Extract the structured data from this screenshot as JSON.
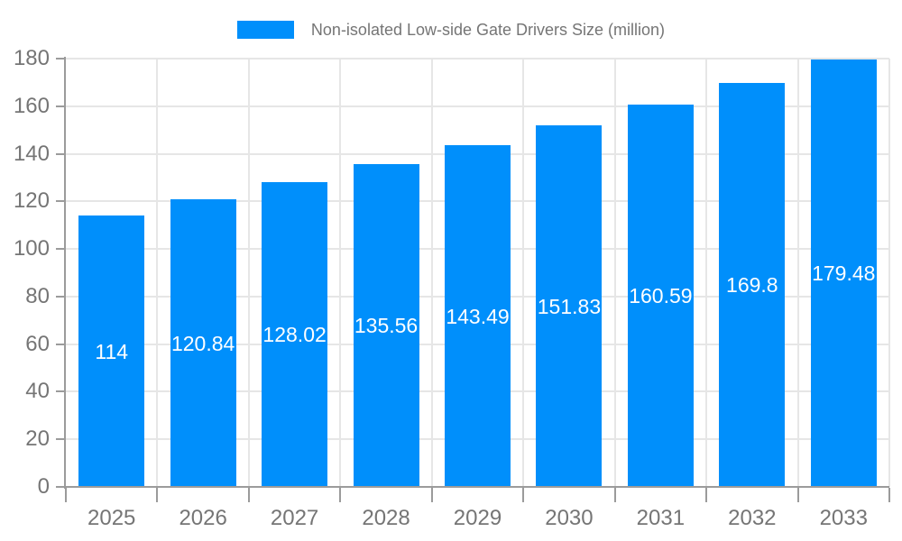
{
  "chart_data": {
    "type": "bar",
    "title": "",
    "legend": "Non-isolated Low-side Gate Drivers Size (million)",
    "legend_position": "top-center",
    "categories": [
      "2025",
      "2026",
      "2027",
      "2028",
      "2029",
      "2030",
      "2031",
      "2032",
      "2033"
    ],
    "values": [
      114,
      120.84,
      128.02,
      135.56,
      143.49,
      151.83,
      160.59,
      169.8,
      179.48
    ],
    "value_labels": [
      "114",
      "120.84",
      "128.02",
      "135.56",
      "143.49",
      "151.83",
      "160.59",
      "169.8",
      "179.48"
    ],
    "value_label_position": "inside-center",
    "xlabel": "",
    "ylabel": "",
    "ylim": [
      0,
      180
    ],
    "yticks": [
      0,
      20,
      40,
      60,
      80,
      100,
      120,
      140,
      160,
      180
    ],
    "grid": "horizontal and vertical band-boundary gridlines"
  },
  "colors": {
    "bar": "#008ffb",
    "grid": "#e6e6e6",
    "axis": "#9b9b9b",
    "label": "#757575",
    "value_label": "#ffffff",
    "background": "#ffffff"
  }
}
